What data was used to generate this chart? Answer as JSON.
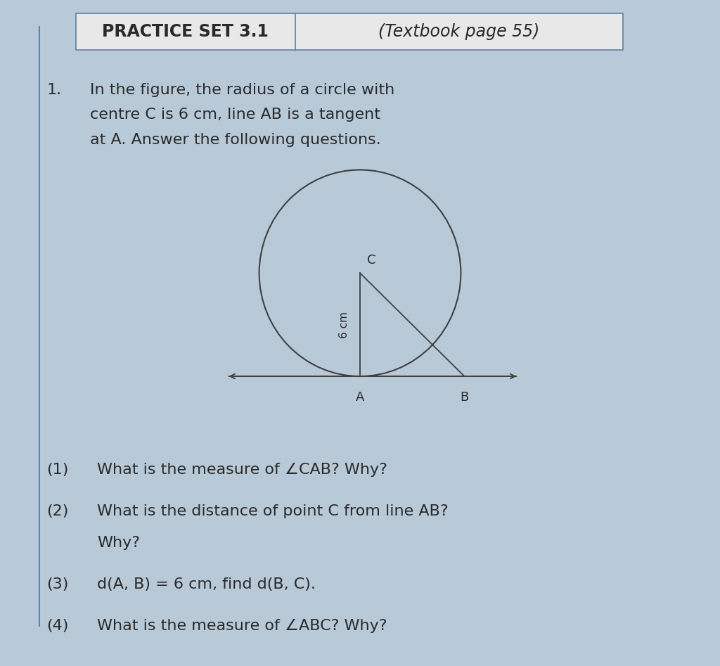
{
  "bg_color": "#b8cad8",
  "content_bg": "#d4dfe8",
  "box_face": "#e8e8e8",
  "box_edge": "#6080a0",
  "text_color": "#2a2a2a",
  "line_color": "#404040",
  "header_text1": "PRACTICE SET 3.1",
  "header_text2": "(Textbook page 55)",
  "prob_num": "1.",
  "prob_line1": "In the figure, the radius of a circle with",
  "prob_line2": "centre C is 6 cm, line AB is a tangent",
  "prob_line3": "at A. Answer the following questions.",
  "label_C": "C",
  "label_A": "A",
  "label_B": "B",
  "label_6cm": "6 cm",
  "q1": "What is the measure of ∠CAB? Why?",
  "q2": "What is the distance of point C from line AB?",
  "q2b": "Why?",
  "q3": "d(A, B) = 6 cm, find d(B, C).",
  "q4": "What is the measure of ∠ABC? Why?",
  "font_size_header": 17,
  "font_size_body": 16,
  "font_size_fig_label": 13,
  "font_size_6cm": 11
}
